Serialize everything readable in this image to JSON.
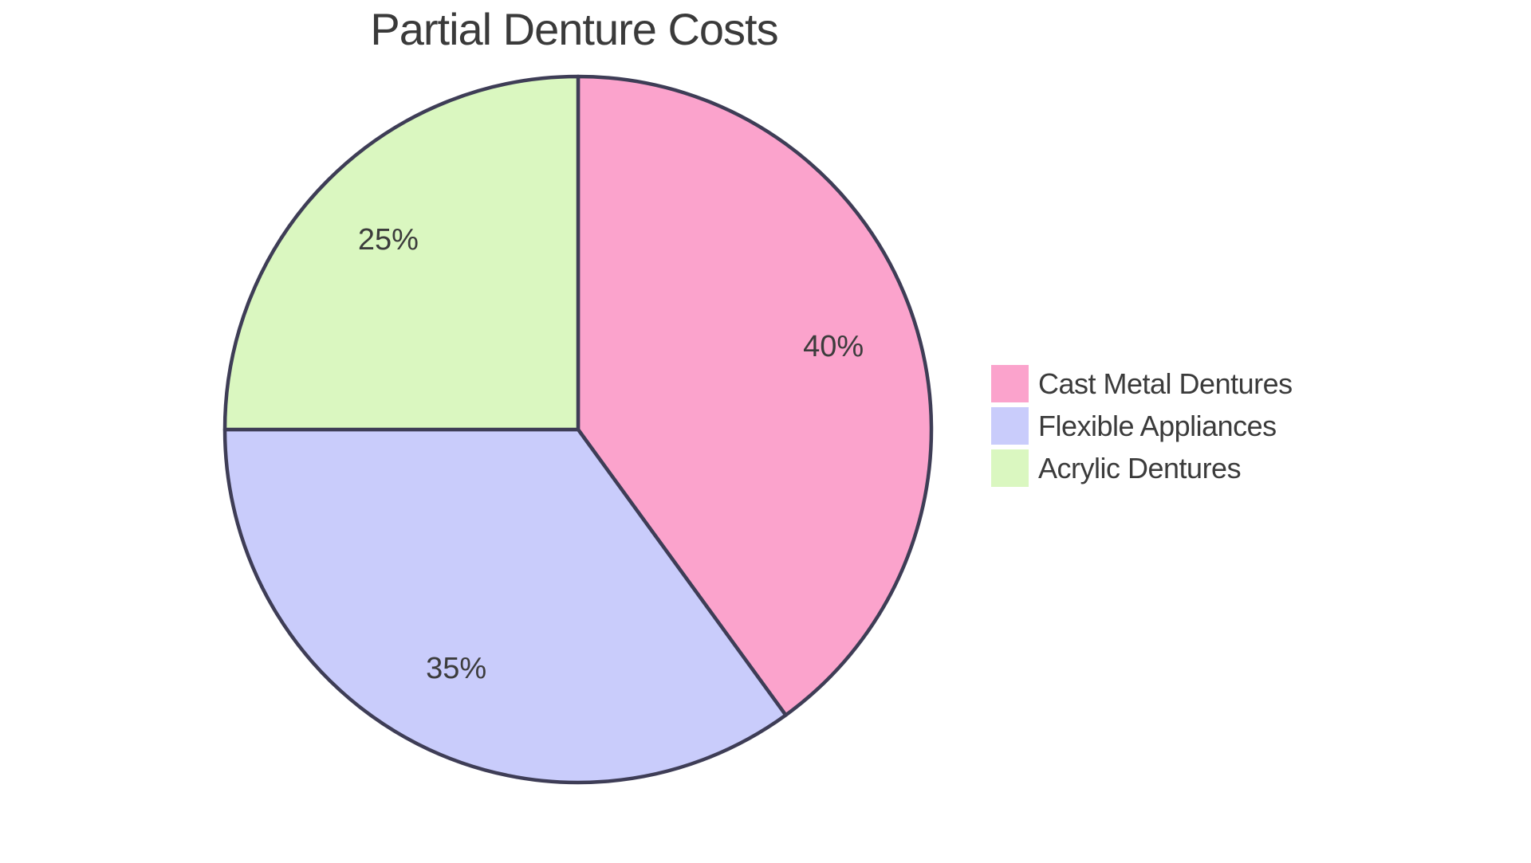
{
  "page": {
    "background_color": "#ffffff"
  },
  "chart_data": {
    "type": "pie",
    "title": "Partial Denture Costs",
    "slices": [
      {
        "label": "Cast Metal Dentures",
        "value": 40,
        "display": "40%",
        "color": "#fba3cc"
      },
      {
        "label": "Flexible Appliances",
        "value": 35,
        "display": "35%",
        "color": "#c9ccfb"
      },
      {
        "label": "Acrylic Dentures",
        "value": 25,
        "display": "25%",
        "color": "#daf7c0"
      }
    ],
    "start_angle": "top",
    "direction": "clockwise",
    "stroke_color": "#3e3d56",
    "stroke_width": 4.5,
    "slice_label_color": "#3c3c3c",
    "title_color": "#3a3a3a",
    "legend_text_color": "#3b3b3b",
    "legend_position": "right",
    "legend_entries": [
      "Cast Metal Dentures",
      "Flexible Appliances",
      "Acrylic Dentures"
    ]
  }
}
